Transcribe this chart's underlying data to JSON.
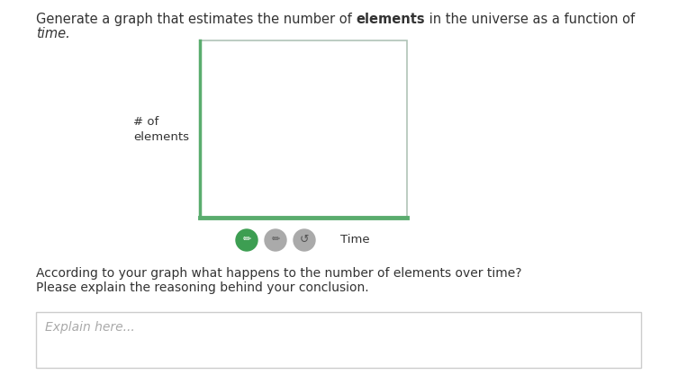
{
  "page_bg": "#ffffff",
  "title_normal_1": "Generate a graph that estimates the number of ",
  "title_bold": "elements",
  "title_normal_2": " in the universe as a function of",
  "title_line2": "time.",
  "ylabel": "# of\nelements",
  "xlabel": "Time",
  "graph_border_color": "#5aac6e",
  "graph_bg": "#ffffff",
  "graph_border_thin": "#b0c4b8",
  "question_text_1": "According to your graph what happens to the number of elements over time?",
  "question_text_2": "Please explain the reasoning behind your conclusion.",
  "explain_placeholder": "Explain here...",
  "explain_box_border": "#cccccc",
  "explain_bg": "#ffffff",
  "button1_color": "#3d9e52",
  "button2_color": "#aaaaaa",
  "button3_color": "#aaaaaa",
  "font_color": "#333333",
  "font_color_light": "#aaaaaa",
  "font_size_title": 10.5,
  "font_size_label": 9.5,
  "font_size_question": 10,
  "font_size_explain": 10
}
